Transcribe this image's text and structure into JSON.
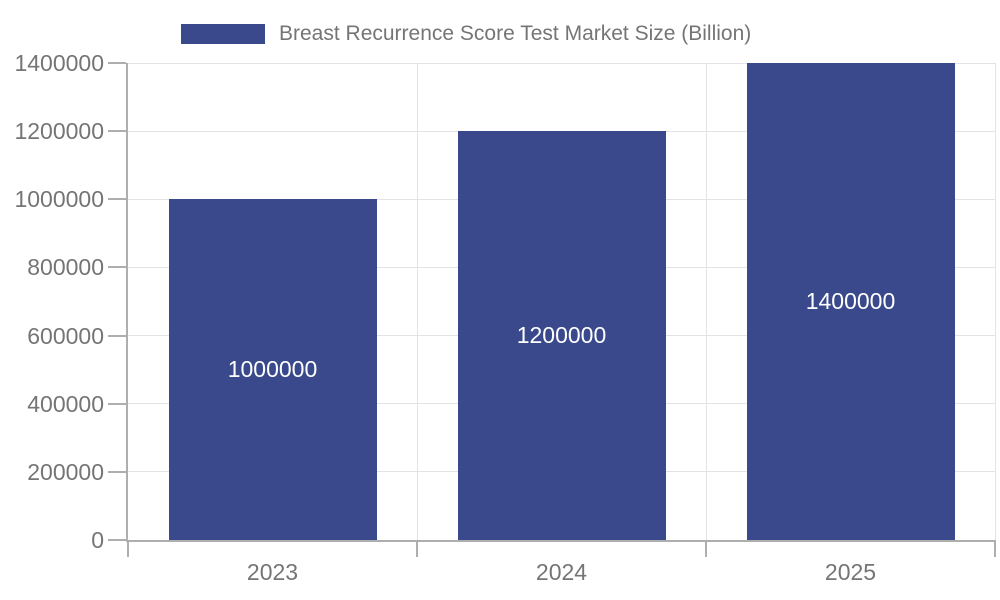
{
  "chart_data": {
    "type": "bar",
    "title": "Breast Recurrence Score Test Market Size (Billion)",
    "categories": [
      "2023",
      "2024",
      "2025"
    ],
    "values": [
      1000000,
      1200000,
      1400000
    ],
    "data_labels": [
      "1000000",
      "1200000",
      "1400000"
    ],
    "yticks": [
      "0",
      "200000",
      "400000",
      "600000",
      "800000",
      "1000000",
      "1200000",
      "1400000"
    ],
    "ytick_values": [
      0,
      200000,
      400000,
      600000,
      800000,
      1000000,
      1200000,
      1400000
    ],
    "ylim": [
      0,
      1400000
    ],
    "xlabel": "",
    "ylabel": "",
    "grid": true,
    "legend_position": "top",
    "colors": {
      "bar": "#39498B",
      "grid": "#e3e3e3",
      "axis": "#aeaeae",
      "tick_label": "#757575",
      "title": "#757575",
      "data_label": "#ffffff",
      "background": "#ffffff"
    }
  }
}
